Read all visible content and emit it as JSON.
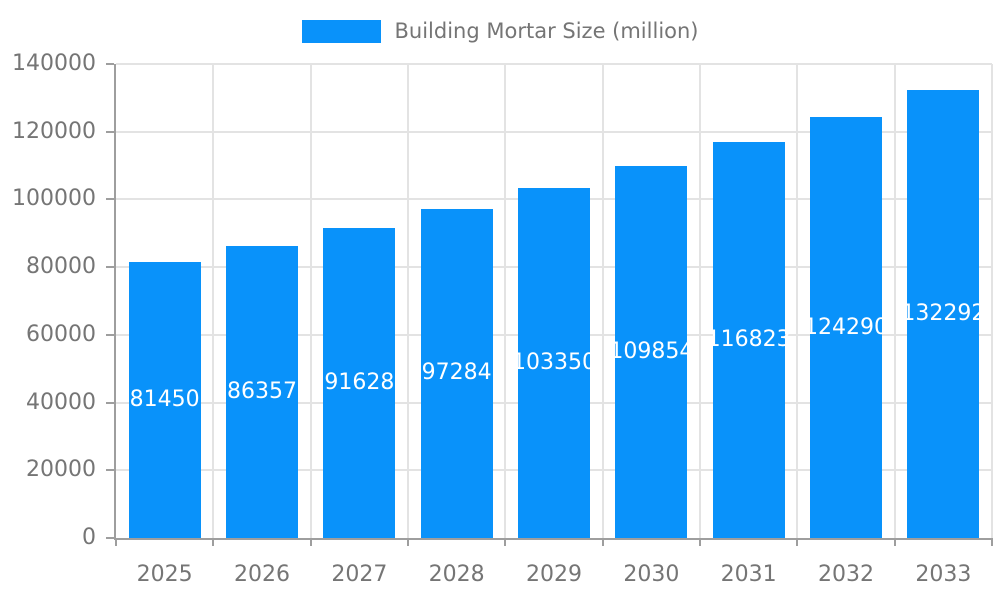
{
  "chart_data": {
    "type": "bar",
    "title": "Building Mortar Size (million)",
    "legend": {
      "label": "Building Mortar Size (million)",
      "position": "top"
    },
    "categories": [
      "2025",
      "2026",
      "2027",
      "2028",
      "2029",
      "2030",
      "2031",
      "2032",
      "2033"
    ],
    "values": [
      81450,
      86357,
      91628,
      97284,
      103350,
      109854,
      116823,
      124290,
      132292
    ],
    "bar_value_labels": [
      "81450",
      "86357",
      "91628",
      "97284",
      "103350",
      "109854",
      "116823",
      "124290",
      "132292"
    ],
    "xlabel": "",
    "ylabel": "",
    "ylim": [
      0,
      140000
    ],
    "yticks": [
      0,
      20000,
      40000,
      60000,
      80000,
      100000,
      120000,
      140000
    ],
    "grid": true,
    "colors": {
      "bar": "#0992fa",
      "grid": "#e3e3e3",
      "axis": "#9e9e9e",
      "tick_text": "#757575",
      "bar_label": "#ffffff",
      "background": "#ffffff"
    }
  }
}
